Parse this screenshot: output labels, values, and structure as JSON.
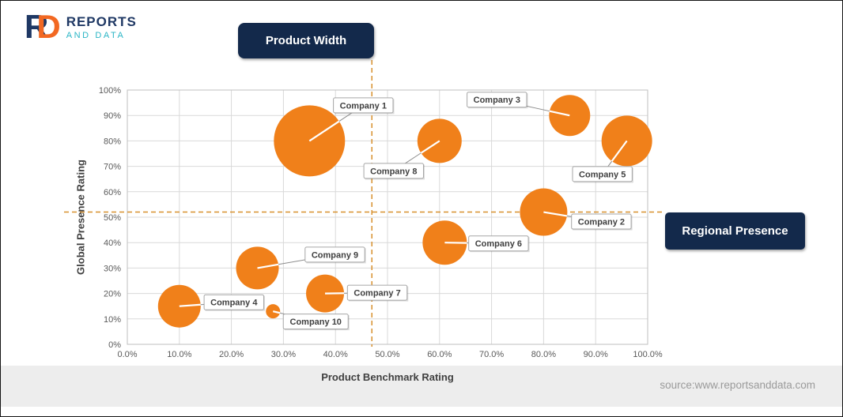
{
  "brand": {
    "mark_r": "R",
    "mark_d": "D",
    "name_top": "REPORTS",
    "name_bottom": "AND DATA"
  },
  "labels": {
    "top_badge": "Product Width",
    "right_badge": "Regional Presence",
    "source": "source:www.reportsanddata.com"
  },
  "chart_data": {
    "type": "scatter",
    "subtype": "bubble",
    "title": "",
    "xlabel": "Product Benchmark Rating",
    "ylabel": "Global Presence Rating",
    "xlim": [
      0,
      100
    ],
    "ylim": [
      0,
      100
    ],
    "grid": true,
    "legend": false,
    "x_tick_labels": [
      "0.0%",
      "10.0%",
      "20.0%",
      "30.0%",
      "40.0%",
      "50.0%",
      "60.0%",
      "70.0%",
      "80.0%",
      "90.0%",
      "100.0%"
    ],
    "y_tick_labels": [
      "0%",
      "10%",
      "20%",
      "30%",
      "40%",
      "50%",
      "60%",
      "70%",
      "80%",
      "90%",
      "100%"
    ],
    "bubble_color": "#F0801A",
    "crosshair": {
      "x": 47,
      "y": 52,
      "color": "#D8912F"
    },
    "points": [
      {
        "name": "Company 1",
        "x": 35,
        "y": 80,
        "r": 45,
        "label_offset": [
          68,
          -45
        ]
      },
      {
        "name": "Company 2",
        "x": 80,
        "y": 52,
        "r": 30,
        "label_offset": [
          73,
          12
        ]
      },
      {
        "name": "Company 3",
        "x": 85,
        "y": 90,
        "r": 26,
        "label_offset": [
          -92,
          -20
        ]
      },
      {
        "name": "Company 4",
        "x": 10,
        "y": 15,
        "r": 27,
        "label_offset": [
          69,
          -5
        ]
      },
      {
        "name": "Company 5",
        "x": 96,
        "y": 80,
        "r": 32,
        "label_offset": [
          -31,
          42
        ]
      },
      {
        "name": "Company 6",
        "x": 61,
        "y": 40,
        "r": 28,
        "label_offset": [
          68,
          1
        ]
      },
      {
        "name": "Company 7",
        "x": 38,
        "y": 20,
        "r": 24,
        "label_offset": [
          66,
          -1
        ]
      },
      {
        "name": "Company 8",
        "x": 60,
        "y": 80,
        "r": 28,
        "label_offset": [
          -58,
          38
        ]
      },
      {
        "name": "Company 9",
        "x": 25,
        "y": 30,
        "r": 27,
        "label_offset": [
          98,
          -17
        ]
      },
      {
        "name": "Company 10",
        "x": 28,
        "y": 13,
        "r": 9,
        "label_offset": [
          54,
          13
        ]
      }
    ]
  }
}
